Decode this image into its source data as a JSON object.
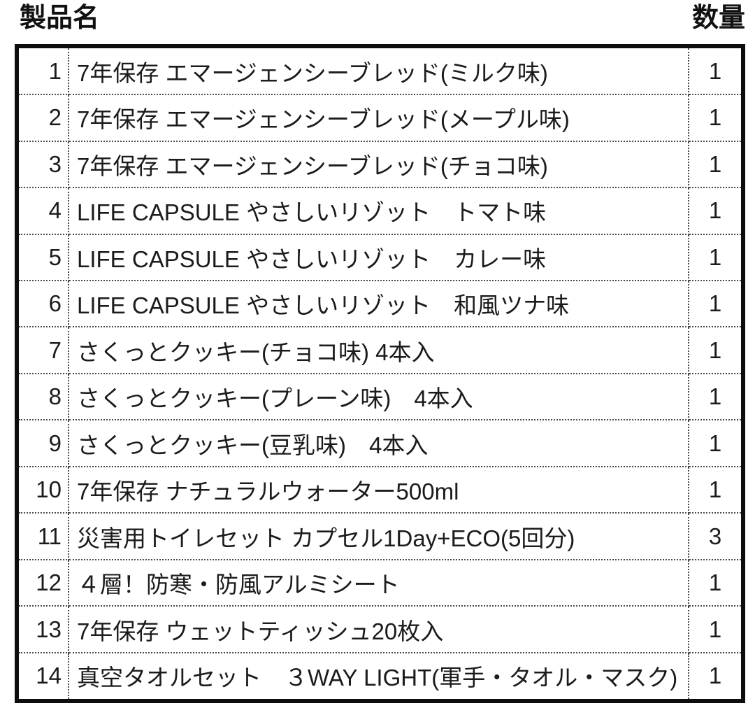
{
  "header": {
    "product_name_label": "製品名",
    "quantity_label": "数量"
  },
  "table": {
    "rows": [
      {
        "no": "1",
        "name": "7年保存 エマージェンシーブレッド(ミルク味)",
        "qty": "1"
      },
      {
        "no": "2",
        "name": "7年保存 エマージェンシーブレッド(メープル味)",
        "qty": "1"
      },
      {
        "no": "3",
        "name": "7年保存 エマージェンシーブレッド(チョコ味)",
        "qty": "1"
      },
      {
        "no": "4",
        "name": "LIFE CAPSULE やさしいリゾット　トマト味",
        "qty": "1"
      },
      {
        "no": "5",
        "name": "LIFE CAPSULE やさしいリゾット　カレー味",
        "qty": "1"
      },
      {
        "no": "6",
        "name": "LIFE CAPSULE やさしいリゾット　和風ツナ味",
        "qty": "1"
      },
      {
        "no": "7",
        "name": "さくっとクッキー(チョコ味) 4本入",
        "qty": "1"
      },
      {
        "no": "8",
        "name": "さくっとクッキー(プレーン味)　4本入",
        "qty": "1"
      },
      {
        "no": "9",
        "name": "さくっとクッキー(豆乳味)　4本入",
        "qty": "1"
      },
      {
        "no": "10",
        "name": "7年保存 ナチュラルウォーター500ml",
        "qty": "1"
      },
      {
        "no": "11",
        "name": "災害用トイレセット カプセル1Day+ECO(5回分)",
        "qty": "3"
      },
      {
        "no": "12",
        "name": "４層！防寒・防風アルミシート",
        "qty": "1"
      },
      {
        "no": "13",
        "name": "7年保存 ウェットティッシュ20枚入",
        "qty": "1"
      },
      {
        "no": "14",
        "name": "真空タオルセット　３WAY LIGHT(軍手・タオル・マスク)",
        "qty": "1"
      }
    ]
  },
  "colors": {
    "text": "#1b1b1b",
    "border": "#0d0d0d",
    "dotted_line": "#4a4a4a",
    "background": "#ffffff"
  }
}
